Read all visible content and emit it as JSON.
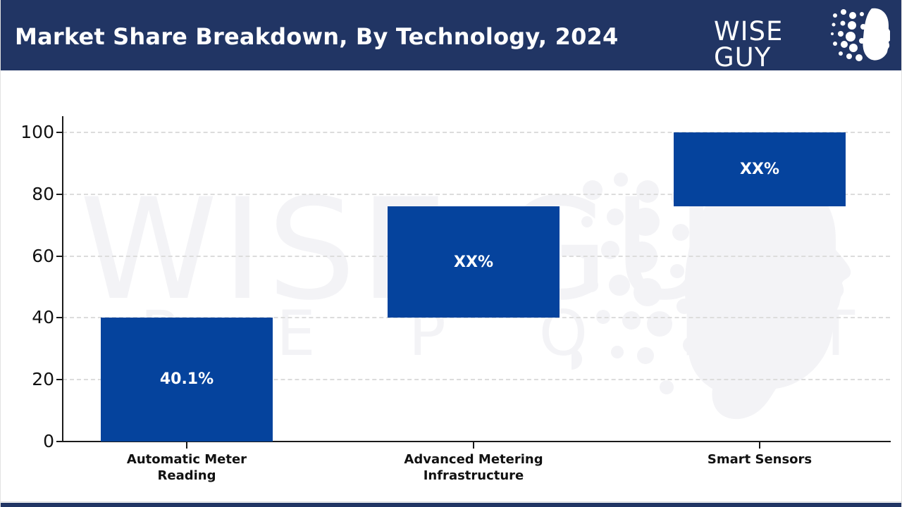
{
  "header": {
    "title": "Market Share Breakdown, By Technology, 2024",
    "logo": {
      "line1": "WISE GUY",
      "line2": "REPORTS"
    }
  },
  "watermark": {
    "line1": "WISE GUY",
    "line2": "R E P O R T S"
  },
  "colors": {
    "header_bg": "#213564",
    "bar_fill": "#05439d",
    "bar_label": "#ffffff",
    "gridline": "#dcdcdc",
    "axis": "#1a1a1a",
    "watermark": "#f3f3f6"
  },
  "chart_data": {
    "type": "bar",
    "subtype": "stacked-waterfall",
    "title": "Market Share Breakdown, By Technology, 2024",
    "categories": [
      "Automatic Meter\nReading",
      "Advanced Metering\nInfrastructure",
      "Smart Sensors"
    ],
    "segments": [
      {
        "category": "Automatic Meter Reading",
        "label": "40.1%",
        "start": 0,
        "end": 40.1
      },
      {
        "category": "Advanced Metering Infrastructure",
        "label": "XX%",
        "start": 40.1,
        "end": 76
      },
      {
        "category": "Smart Sensors",
        "label": "XX%",
        "start": 76,
        "end": 100
      }
    ],
    "yticks": [
      0,
      20,
      40,
      60,
      80,
      100
    ],
    "ylim": [
      0,
      105
    ],
    "xlabel": "",
    "ylabel": "",
    "grid": "horizontal-dashed",
    "legend": "none"
  }
}
